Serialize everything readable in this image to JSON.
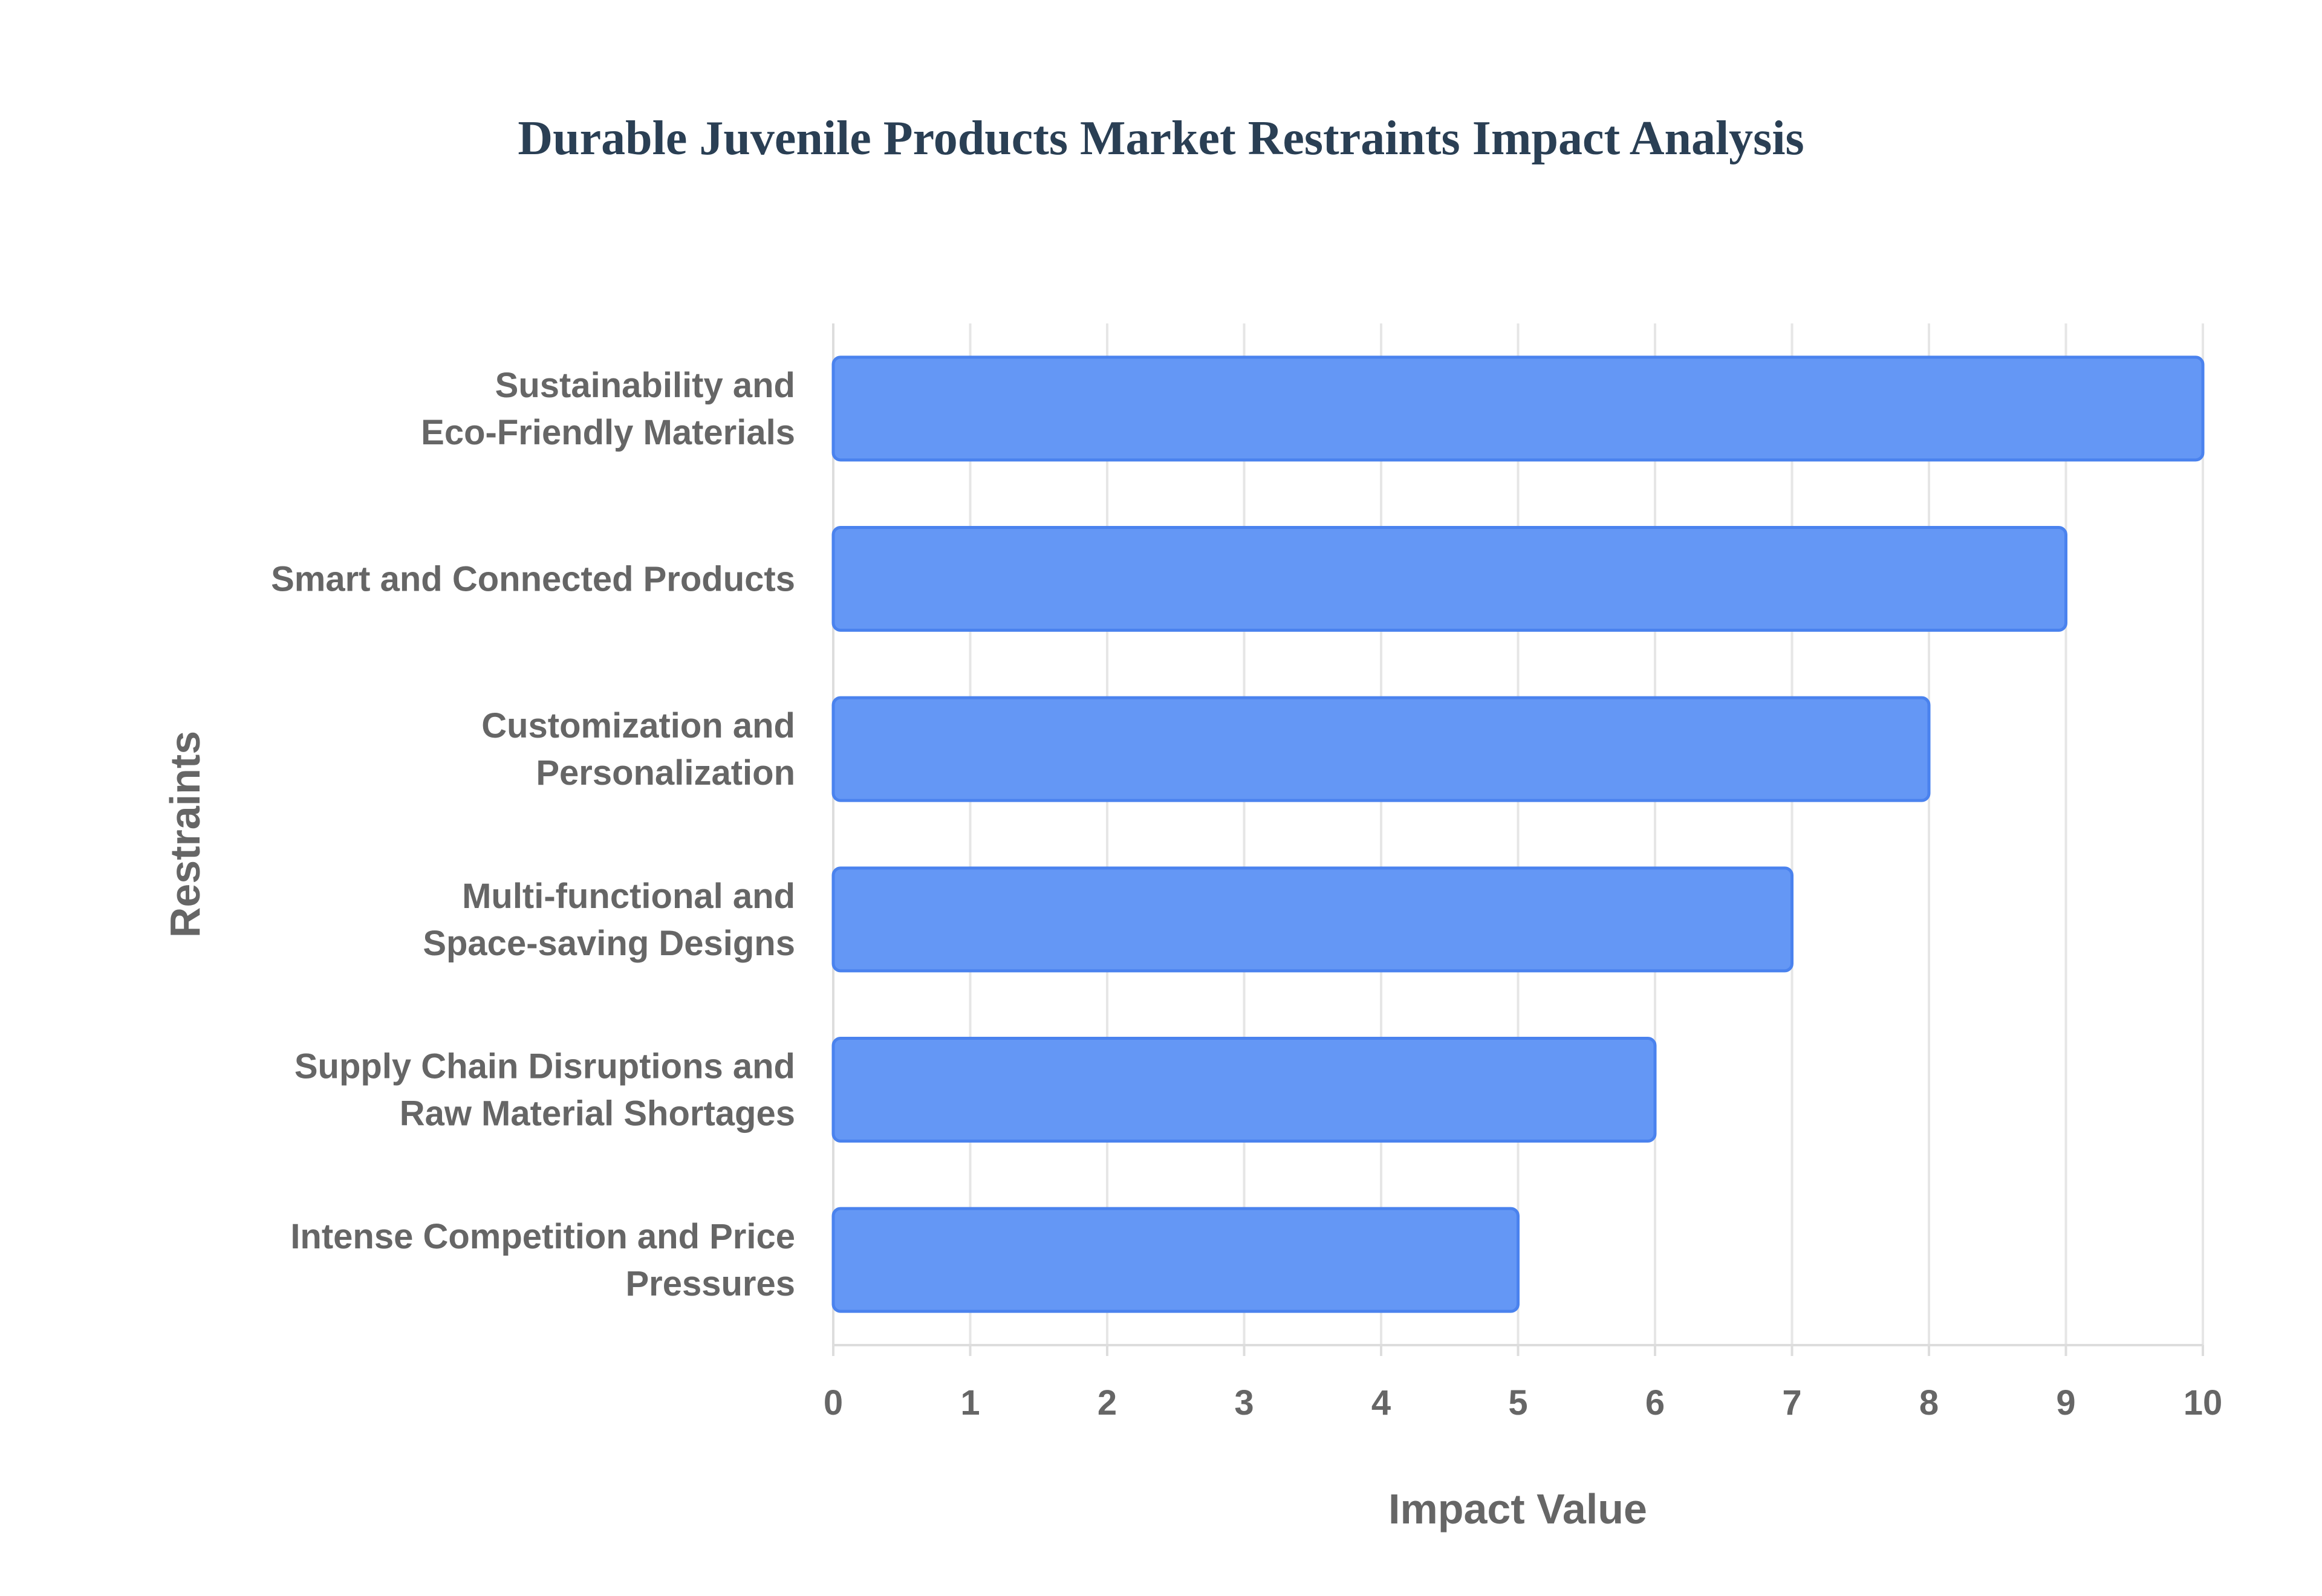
{
  "chart_data": {
    "type": "bar",
    "orientation": "horizontal",
    "title": "Durable Juvenile Products Market Restraints Impact Analysis",
    "xlabel": "Impact Value",
    "ylabel": "Restraints",
    "xlim": [
      0,
      10
    ],
    "xticks": [
      "0",
      "1",
      "2",
      "3",
      "4",
      "5",
      "6",
      "7",
      "8",
      "9",
      "10"
    ],
    "grid": true,
    "bar_color": "#6497f5",
    "bar_border_color": "#4a82ee",
    "categories": [
      [
        "Sustainability and",
        "Eco-Friendly Materials"
      ],
      [
        "Smart and Connected Products"
      ],
      [
        "Customization and",
        "Personalization"
      ],
      [
        "Multi-functional and",
        "Space-saving Designs"
      ],
      [
        "Supply Chain Disruptions and",
        "Raw Material Shortages"
      ],
      [
        "Intense Competition and Price",
        "Pressures"
      ]
    ],
    "values": [
      10,
      9,
      8,
      7,
      6,
      5
    ]
  }
}
